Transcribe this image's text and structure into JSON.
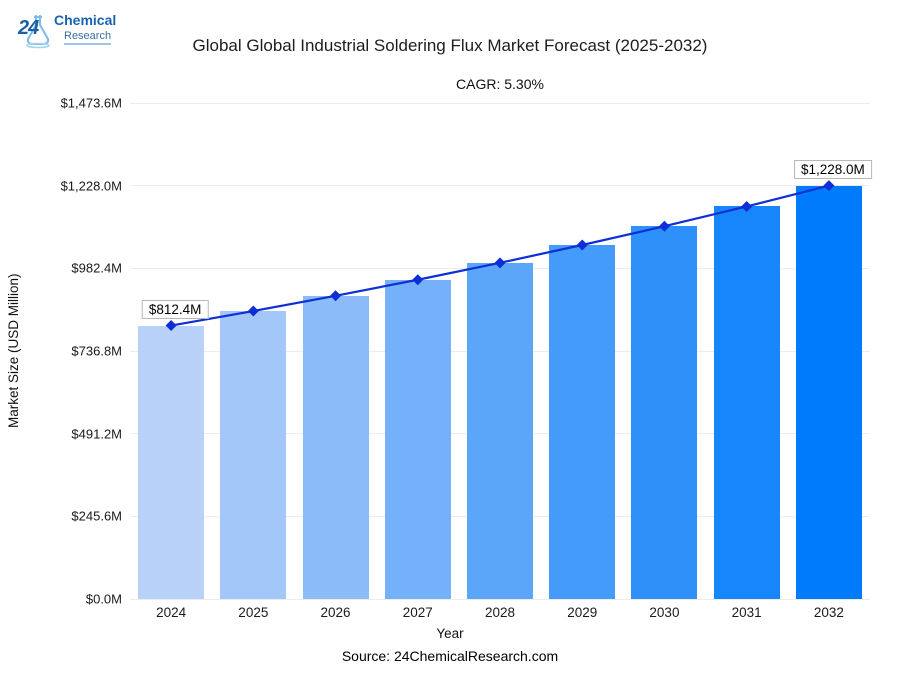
{
  "logo": {
    "number": "24",
    "line1": "Chemical",
    "line2": "Research"
  },
  "header": {
    "title": "Global Global Industrial Soldering Flux Market Forecast (2025-2032)",
    "subtitle": "CAGR: 5.30%"
  },
  "chart_data": {
    "type": "bar",
    "title": "Global Global Industrial Soldering Flux Market Forecast (2025-2032)",
    "subtitle": "CAGR: 5.30%",
    "categories": [
      "2024",
      "2025",
      "2026",
      "2027",
      "2028",
      "2029",
      "2030",
      "2031",
      "2032"
    ],
    "series": [
      {
        "name": "Market Size bars",
        "type": "bar",
        "values": [
          812.4,
          855.5,
          900.8,
          948.5,
          998.8,
          1051.7,
          1107.5,
          1166.2,
          1228.0
        ],
        "bar_colors": [
          "#B8D1F9",
          "#A3C7F9",
          "#8BBCF9",
          "#74B1FA",
          "#5CA6FA",
          "#459BFA",
          "#2E91FA",
          "#1786FB",
          "#007BFB"
        ]
      },
      {
        "name": "Market Size trend line",
        "type": "line",
        "values": [
          812.4,
          855.5,
          900.8,
          948.5,
          998.8,
          1051.7,
          1107.5,
          1166.2,
          1228.0
        ],
        "color": "#0E2FD6",
        "marker": "diamond"
      }
    ],
    "xlabel": "Year",
    "ylabel": "Market Size (USD Million)",
    "ylim": [
      0,
      1473.6
    ],
    "yticks": [
      {
        "value": 0,
        "label": "$0.0M"
      },
      {
        "value": 245.6,
        "label": "$245.6M"
      },
      {
        "value": 491.2,
        "label": "$491.2M"
      },
      {
        "value": 736.8,
        "label": "$736.8M"
      },
      {
        "value": 982.4,
        "label": "$982.4M"
      },
      {
        "value": 1228.0,
        "label": "$1,228.0M"
      },
      {
        "value": 1473.6,
        "label": "$1,473.6M"
      }
    ],
    "grid": true,
    "grid_color": "#ECECEC",
    "legend": "none",
    "annotations": [
      {
        "category": "2024",
        "text": "$812.4M"
      },
      {
        "category": "2032",
        "text": "$1,228.0M"
      }
    ]
  },
  "footer": {
    "source": "Source: 24ChemicalResearch.com"
  }
}
